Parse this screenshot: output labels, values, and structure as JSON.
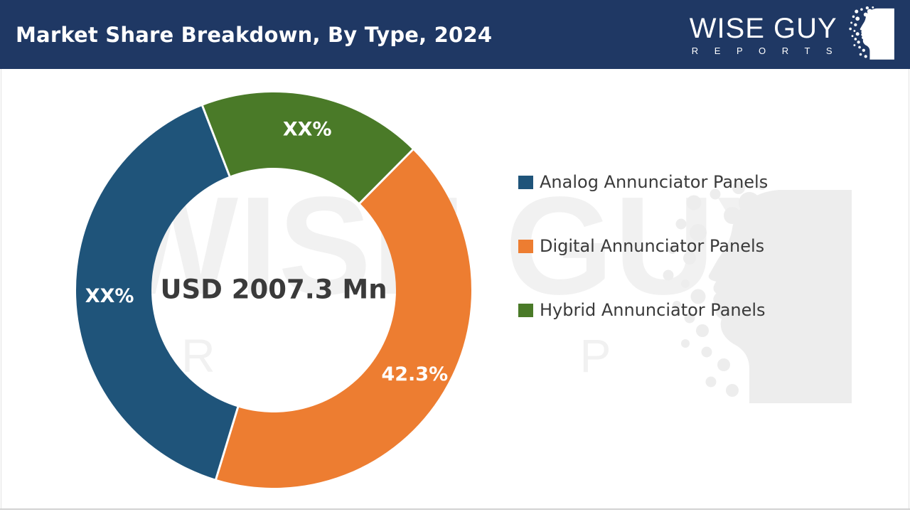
{
  "header": {
    "title": "Market Share Breakdown, By Type, 2024",
    "background_color": "#1F3864",
    "logo": {
      "line1": "WISE GUY",
      "line2": "R E P O R T S"
    }
  },
  "watermark": {
    "line1": "WISE GUY",
    "line2": "R E P O R T S"
  },
  "chart_data": {
    "type": "pie",
    "subtype": "donut",
    "title": "Market Share Breakdown, By Type, 2024",
    "center_label": "USD 2007.3 Mn",
    "start_angle_deg": -107,
    "direction": "counterclockwise",
    "legend_position": "right",
    "segments": [
      {
        "name": "Analog Annunciator Panels",
        "value_pct": 39.4,
        "label": "XX%",
        "color": "#1F547A"
      },
      {
        "name": "Digital Annunciator Panels",
        "value_pct": 42.3,
        "label": "42.3%",
        "color": "#ED7D31"
      },
      {
        "name": "Hybrid Annunciator Panels",
        "value_pct": 18.3,
        "label": "XX%",
        "color": "#4A7A28"
      }
    ],
    "draw_order": [
      "Digital Annunciator Panels",
      "Hybrid Annunciator Panels",
      "Analog Annunciator Panels"
    ]
  }
}
